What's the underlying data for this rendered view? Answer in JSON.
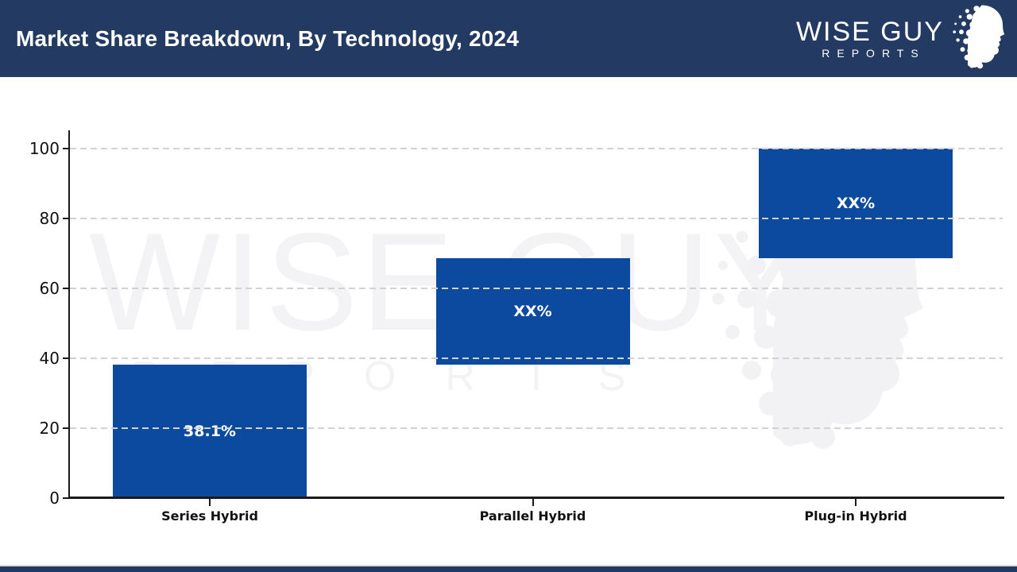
{
  "header": {
    "title": "Market Share Breakdown, By Technology, 2024",
    "background_color": "#233A63",
    "logo": {
      "line1": "WISE GUY",
      "line2": "REPORTS"
    }
  },
  "watermark": {
    "line1": "WISE GUY",
    "line2": "REPORTS"
  },
  "footer": {
    "bar_color": "#233A63"
  },
  "chart_data": {
    "type": "bar",
    "subtype": "floating-waterfall",
    "title": "Market Share Breakdown, By Technology, 2024",
    "categories": [
      "Series Hybrid",
      "Parallel Hybrid",
      "Plug-in Hybrid"
    ],
    "series": [
      {
        "name": "Market Share",
        "segments": [
          {
            "category": "Series Hybrid",
            "start": 0,
            "end": 38.1,
            "label": "38.1%"
          },
          {
            "category": "Parallel Hybrid",
            "start": 38.1,
            "end": 68.6,
            "label": "XX%"
          },
          {
            "category": "Plug-in Hybrid",
            "start": 68.6,
            "end": 100,
            "label": "XX%"
          }
        ]
      }
    ],
    "xlabel": "",
    "ylabel": "",
    "ylim": [
      0,
      100
    ],
    "yticks": [
      0,
      20,
      40,
      60,
      80,
      100
    ],
    "grid": "horizontal-dashed",
    "grid_color": "#d2d2d2",
    "bar_color": "#0C4AA0",
    "bar_label_color": "#ffffff",
    "axis_color": "#1a1a1a",
    "legend": "none"
  }
}
